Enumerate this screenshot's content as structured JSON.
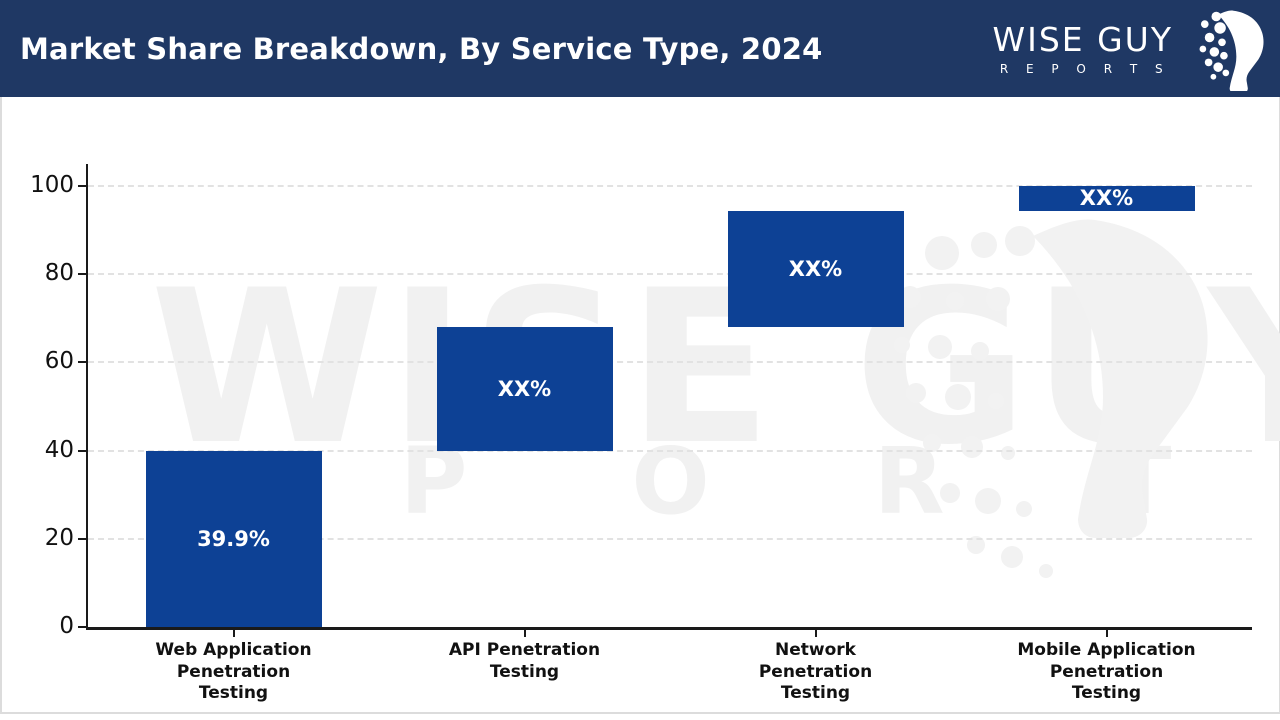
{
  "header": {
    "title": "Market Share Breakdown, By Service Type, 2024",
    "bg_color": "#1f3864",
    "logo": {
      "wordmark": "WISE GUY",
      "subtext": "R E P O R T S"
    }
  },
  "watermark": {
    "line1": "WISE GUY",
    "line2": "P O R T S",
    "color": "#f1f1f1"
  },
  "chart_data": {
    "type": "bar",
    "subtype": "floating-waterfall",
    "title": "Market Share Breakdown, By Service Type, 2024",
    "categories": [
      [
        "Web Application",
        "Penetration",
        "Testing"
      ],
      [
        "API Penetration",
        "Testing"
      ],
      [
        "Network",
        "Penetration",
        "Testing"
      ],
      [
        "Mobile Application",
        "Penetration",
        "Testing"
      ]
    ],
    "segments": [
      {
        "start": 0,
        "end": 39.9,
        "label": "39.9%"
      },
      {
        "start": 39.9,
        "end": 68,
        "label": "XX%"
      },
      {
        "start": 68,
        "end": 94.4,
        "label": "XX%"
      },
      {
        "start": 94.4,
        "end": 100,
        "label": "XX%"
      }
    ],
    "yticks": [
      0,
      20,
      40,
      60,
      80,
      100
    ],
    "ylim": [
      0,
      105
    ],
    "grid": "dashed-horizontal",
    "legend": "none",
    "bar_color": "#0d4195",
    "bar_label_color": "#ffffff",
    "axis_color": "#1a1a1a",
    "grid_color": "#e2e2e2"
  }
}
